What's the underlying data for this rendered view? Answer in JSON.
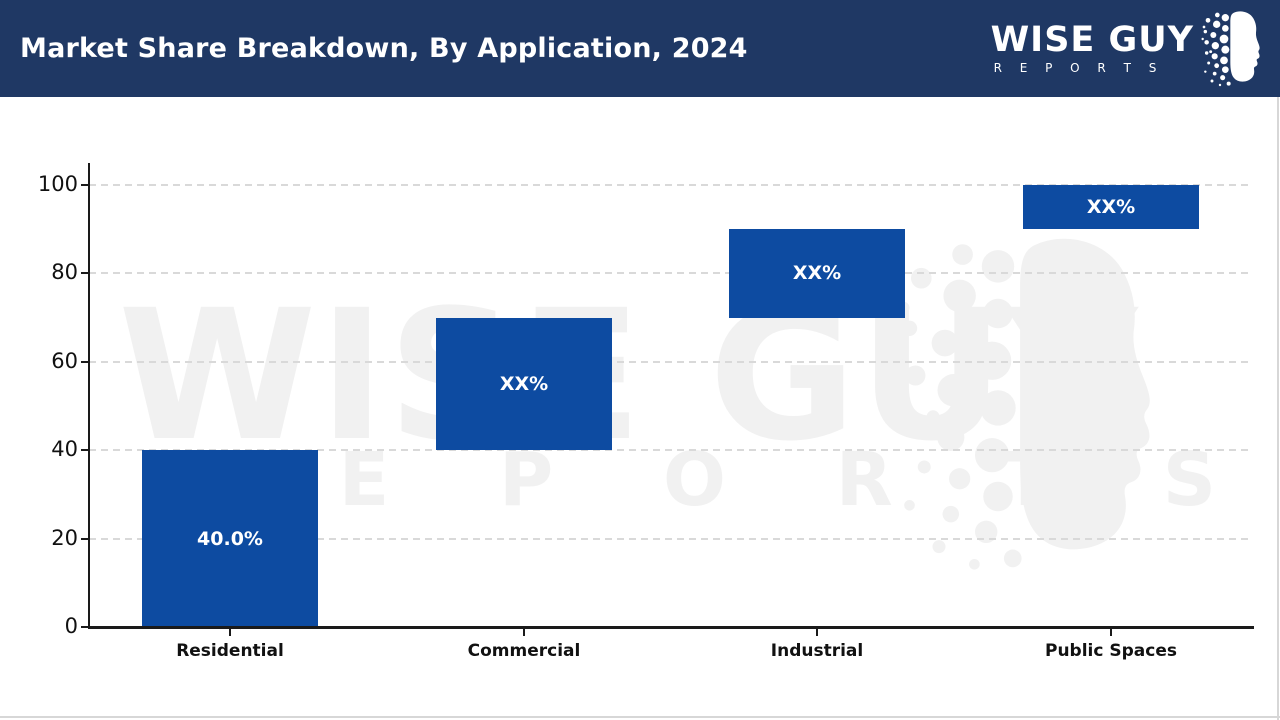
{
  "header": {
    "title": "Market Share Breakdown, By Application, 2024",
    "logo": {
      "wordmark": "WISE GUY",
      "subtext": "R E P O R T S"
    }
  },
  "watermark": {
    "wordmark": "WISE GUY",
    "subtext": "R E P O R T S"
  },
  "chart_data": {
    "type": "bar",
    "variant": "waterfall",
    "title": "Market Share Breakdown, By Application, 2024",
    "categories": [
      "Residential",
      "Commercial",
      "Industrial",
      "Public Spaces"
    ],
    "segments": [
      {
        "category": "Residential",
        "start": 0,
        "end": 40,
        "label": "40.0%"
      },
      {
        "category": "Commercial",
        "start": 40,
        "end": 70,
        "label": "XX%"
      },
      {
        "category": "Industrial",
        "start": 70,
        "end": 90,
        "label": "XX%"
      },
      {
        "category": "Public Spaces",
        "start": 90,
        "end": 100,
        "label": "XX%"
      }
    ],
    "xlabel": "",
    "ylabel": "",
    "ylim": [
      0,
      105
    ],
    "yticks": [
      0,
      20,
      40,
      60,
      80,
      100
    ],
    "grid": "horizontal-dashed",
    "legend": "none"
  },
  "colors": {
    "header_bg": "#1f3864",
    "bar": "#0d4ba1",
    "grid": "#d9d9d9",
    "axis": "#1a1a1a",
    "bar_label": "#ffffff",
    "watermark": "#f1f1f1"
  }
}
